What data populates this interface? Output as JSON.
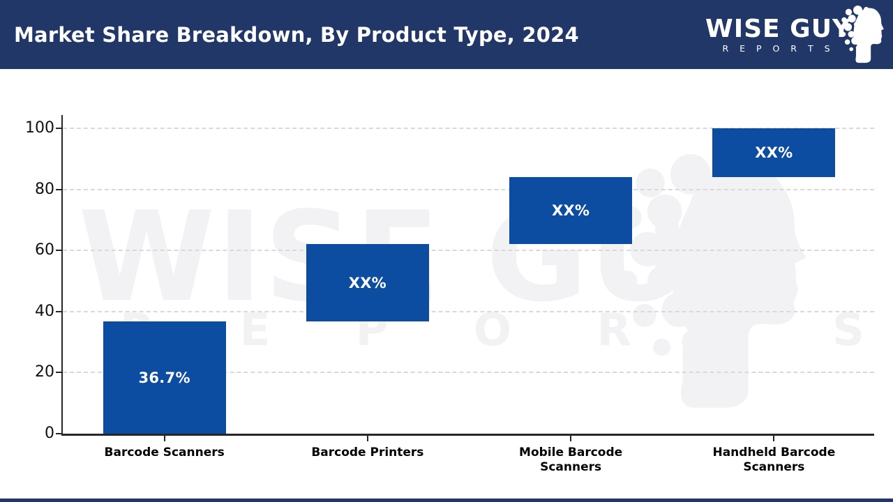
{
  "header": {
    "title": "Market Share Breakdown, By Product Type, 2024"
  },
  "brand": {
    "name": "WISE GUY",
    "tagline": "R E P O R T S"
  },
  "watermark": {
    "title": "WISE GUY",
    "tagline": "R E P O R T S"
  },
  "chart_data": {
    "type": "bar",
    "subtype": "waterfall",
    "title": "Market Share Breakdown, By Product Type, 2024",
    "categories": [
      "Barcode Scanners",
      "Barcode Printers",
      "Mobile Barcode Scanners",
      "Handheld Barcode Scanners"
    ],
    "bars": [
      {
        "category": "Barcode Scanners",
        "start": 0,
        "end": 36.7,
        "label": "36.7%"
      },
      {
        "category": "Barcode Printers",
        "start": 36.7,
        "end": 62,
        "label": "XX%"
      },
      {
        "category": "Mobile Barcode Scanners",
        "start": 62,
        "end": 84,
        "label": "XX%"
      },
      {
        "category": "Handheld Barcode Scanners",
        "start": 84,
        "end": 100,
        "label": "XX%"
      }
    ],
    "yticks": [
      0,
      20,
      40,
      60,
      80,
      100
    ],
    "ylim": [
      0,
      105
    ],
    "xlabel": "",
    "ylabel": "",
    "grid": "horizontal dashed",
    "legend": "none",
    "bar_color": "#0c4da2",
    "bar_label_color": "#ffffff"
  },
  "colors": {
    "header_bg": "#213768",
    "accent_blue": "#0c4da2",
    "watermark": "#f2f2f4",
    "grid": "#d9d9d9",
    "axis": "#262626"
  }
}
